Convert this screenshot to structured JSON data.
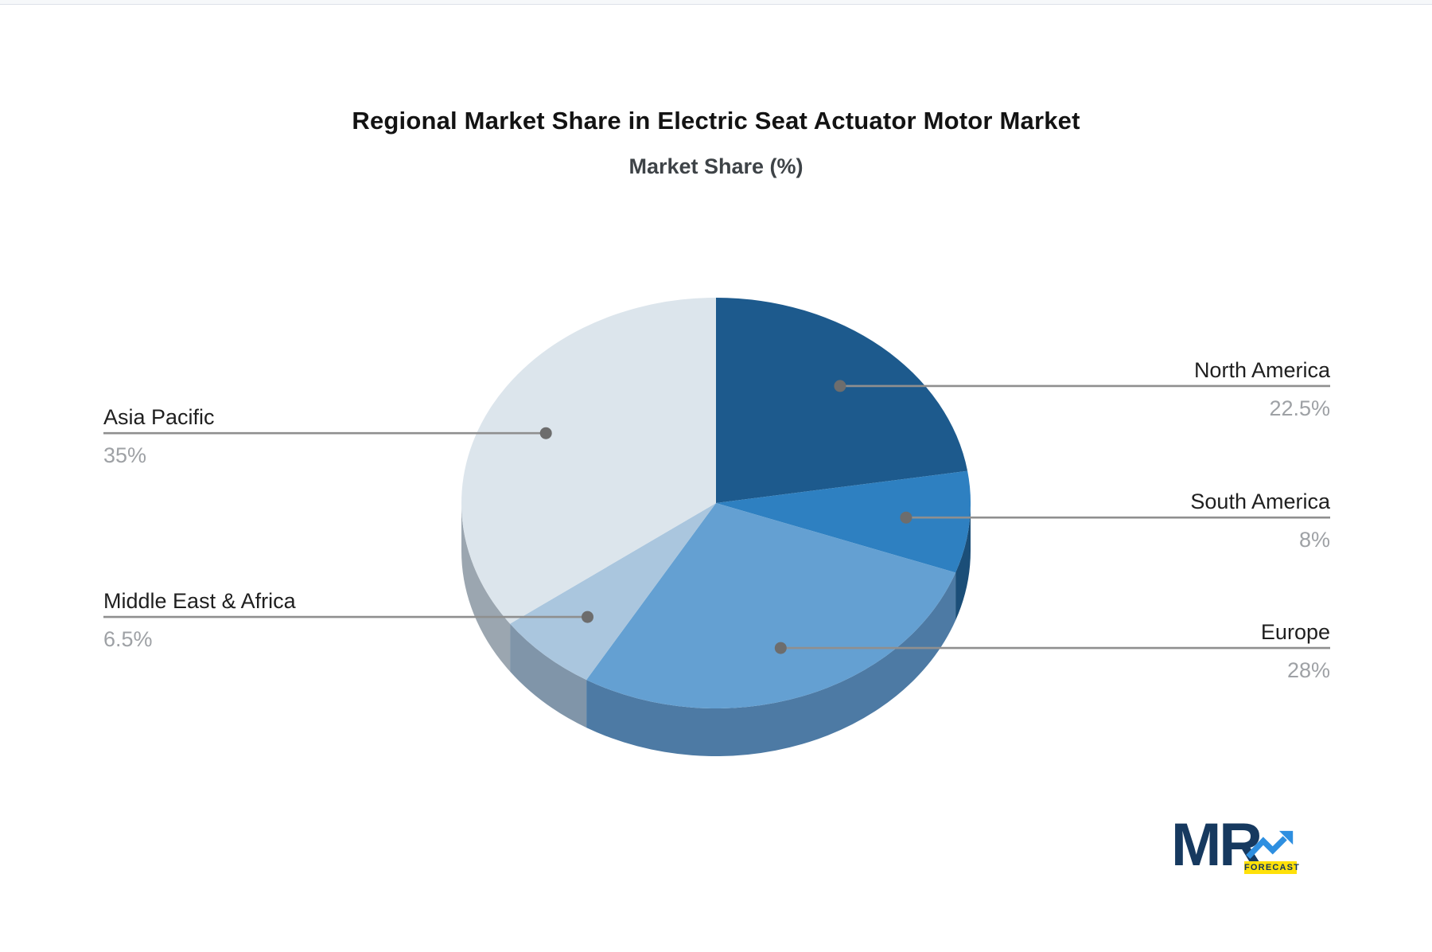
{
  "chart_data": {
    "type": "pie",
    "title": "Regional Market Share in Electric Seat Actuator Motor Market",
    "subtitle": "Market Share (%)",
    "unit": "%",
    "effect": "3d-depth",
    "start_angle_deg": 0,
    "direction": "clockwise",
    "slices": [
      {
        "label": "North America",
        "value": 22.5,
        "display_value": "22.5%",
        "color": "#1d5a8d",
        "side_color": "#16476f",
        "callout_side": "right"
      },
      {
        "label": "South America",
        "value": 8,
        "display_value": "8%",
        "color": "#2e80c1",
        "side_color": "#1b4e78",
        "callout_side": "right"
      },
      {
        "label": "Europe",
        "value": 28,
        "display_value": "28%",
        "color": "#64a0d2",
        "side_color": "#4d7aa4",
        "callout_side": "right"
      },
      {
        "label": "Middle East & Africa",
        "value": 6.5,
        "display_value": "6.5%",
        "color": "#aac6de",
        "side_color": "#8095a9",
        "callout_side": "left"
      },
      {
        "label": "Asia Pacific",
        "value": 35,
        "display_value": "35%",
        "color": "#dce5ec",
        "side_color": "#9ba6b0",
        "callout_side": "left"
      }
    ],
    "callout_style": {
      "line_color": "#8f8f8f",
      "dot_color": "#6d6d6d",
      "label_color": "#1f1f1f",
      "value_color": "#9ea1a5"
    }
  },
  "branding": {
    "logo_text": "MR",
    "logo_tagline": "FORECAST",
    "logo_text_color": "#16395f",
    "logo_arrow_color": "#2e8fe0",
    "logo_tagline_bg": "#ffe10a",
    "logo_tagline_color": "#14355c"
  }
}
